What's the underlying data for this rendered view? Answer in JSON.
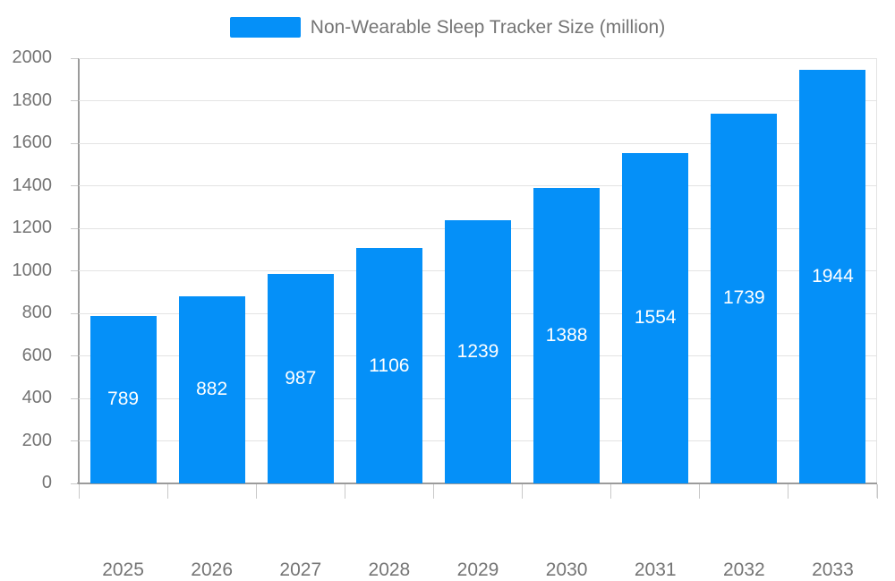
{
  "legend": {
    "label": "Non-Wearable Sleep Tracker Size (million)"
  },
  "chart_data": {
    "type": "bar",
    "title": "Non-Wearable Sleep Tracker Size (million)",
    "categories": [
      "2025",
      "2026",
      "2027",
      "2028",
      "2029",
      "2030",
      "2031",
      "2032",
      "2033"
    ],
    "values": [
      789,
      882,
      987,
      1106,
      1239,
      1388,
      1554,
      1739,
      1944
    ],
    "series": [
      {
        "name": "Non-Wearable Sleep Tracker Size (million)",
        "values": [
          789,
          882,
          987,
          1106,
          1239,
          1388,
          1554,
          1739,
          1944
        ]
      }
    ],
    "xlabel": "",
    "ylabel": "",
    "ylim": [
      0,
      2000
    ],
    "yticks": [
      0,
      200,
      400,
      600,
      800,
      1000,
      1200,
      1400,
      1600,
      1800,
      2000
    ],
    "grid": true,
    "legend_position": "top-center",
    "bar_label_position": "inside-center",
    "colors": {
      "bar": "#0590f8",
      "bar_label": "#ffffff",
      "axis_label": "#757575",
      "grid_line": "#e3e3e3",
      "axis_line": "#9b9b9b",
      "tick_line": "#c9c9c9",
      "legend_text": "#757575"
    }
  }
}
